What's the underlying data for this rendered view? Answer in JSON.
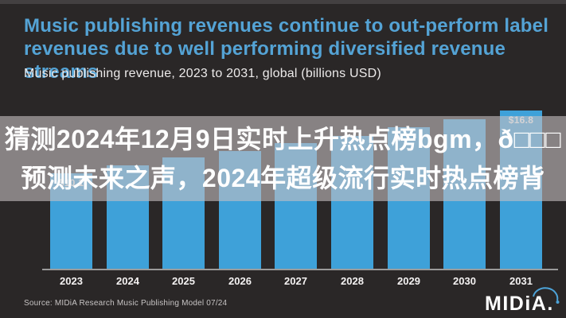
{
  "header": {
    "title_line1": "Music publishing revenues continue to out-perform label",
    "title_line2": "revenues due to well performing diversified revenue streams",
    "subtitle": "Music publishing revenue, 2023 to 2031, global (billions USD)"
  },
  "overlay": {
    "line1": "猜测2024年12月9日实时上升热点榜bgm，ð□□□",
    "line2": "预测未来之声，2024年超级流行实时热点榜背"
  },
  "chart_data": {
    "type": "bar",
    "title": "Music publishing revenue, 2023 to 2031, global (billions USD)",
    "categories": [
      "2023",
      "2024",
      "2025",
      "2026",
      "2027",
      "2028",
      "2029",
      "2030",
      "2031"
    ],
    "values": [
      10.1,
      11.0,
      11.8,
      12.5,
      13.3,
      14.1,
      15.0,
      15.9,
      16.8
    ],
    "bar_labels": [
      "$10.1",
      "",
      "",
      "",
      "",
      "",
      "",
      "",
      "$16.8"
    ],
    "xlabel": "",
    "ylabel": "billions USD",
    "ylim": [
      0,
      16.8
    ],
    "grid": false,
    "legend": "none",
    "note": "single series of cyan-blue bars on dark background; only 2023 and 2031 value labels visible, 2023 label mostly hidden behind translucent text band"
  },
  "footer": {
    "source": "Source: MIDiA Research Music Publishing Model 07/24",
    "logo_text": "MIDiA."
  },
  "colors": {
    "background": "#2a2727",
    "title_blue": "#54a3d5",
    "bar_blue": "#3ea1d9",
    "overlay_band": "rgba(198,192,193,0.60)",
    "overlay_text": "#ffffff",
    "axis_gray": "#9b9b9b",
    "logo_arc_blue": "#4da3d8"
  }
}
